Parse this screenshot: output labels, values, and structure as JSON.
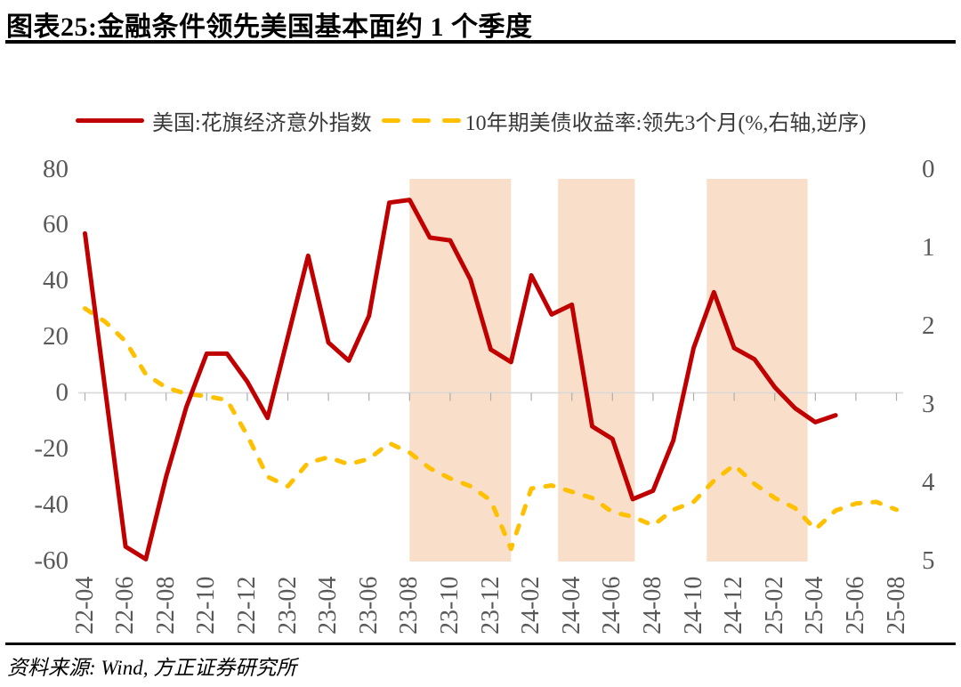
{
  "header": {
    "title": "图表25:金融条件领先美国基本面约 1 个季度"
  },
  "legend": {
    "items": [
      {
        "label": "美国:花旗经济意外指数",
        "color": "#C00000",
        "line_style": "solid"
      },
      {
        "label": "10年期美债收益率:领先3个月(%,右轴,逆序)",
        "color": "#FFC000",
        "line_style": "dashed"
      }
    ]
  },
  "footer": {
    "source": "资料来源: Wind, 方正证券研究所"
  },
  "colors": {
    "red_line": "#C00000",
    "yellow_line": "#FFC000",
    "band": "#F9DFC9",
    "gridline": "#D9D9D9",
    "tick": "#ADADAD",
    "axis_text": "#595959",
    "legend_text": "#3A3A3A",
    "title_text": "#000000"
  },
  "chart_data": {
    "type": "line",
    "x": [
      "22-04",
      "22-05",
      "22-06",
      "22-07",
      "22-08",
      "22-09",
      "22-10",
      "22-11",
      "22-12",
      "23-01",
      "23-02",
      "23-03",
      "23-04",
      "23-05",
      "23-06",
      "23-07",
      "23-08",
      "23-09",
      "23-10",
      "23-11",
      "23-12",
      "24-01",
      "24-02",
      "24-03",
      "24-04",
      "24-05",
      "24-06",
      "24-07",
      "24-08",
      "24-09",
      "24-10",
      "24-11",
      "24-12",
      "25-01",
      "25-02",
      "25-03",
      "25-04",
      "25-05",
      "25-06",
      "25-07",
      "25-08"
    ],
    "x_tick_labels": [
      "22-04",
      "22-06",
      "22-08",
      "22-10",
      "22-12",
      "23-02",
      "23-04",
      "23-06",
      "23-08",
      "23-10",
      "23-12",
      "24-02",
      "24-04",
      "24-06",
      "24-08",
      "24-10",
      "24-12",
      "25-02",
      "25-04",
      "25-06",
      "25-08"
    ],
    "left_axis": {
      "ticks": [
        80,
        60,
        40,
        20,
        0,
        -20,
        -40,
        -60
      ],
      "min": -60,
      "max": 80
    },
    "right_axis": {
      "ticks": [
        0,
        1,
        2,
        3,
        4,
        5
      ],
      "min": 0,
      "max": 5,
      "inverted": true
    },
    "grid": "zero-line-only",
    "series": [
      {
        "name": "美国:花旗经济意外指数",
        "axis": "left",
        "color": "#C00000",
        "dashed": false,
        "values": [
          57,
          1,
          -55,
          -59.5,
          -30,
          -5,
          14,
          14,
          4,
          -9,
          20,
          49,
          18,
          11.5,
          27.5,
          68,
          69,
          55.5,
          54.5,
          40.5,
          15.5,
          11,
          42,
          28,
          31.5,
          -12,
          -16.5,
          -38,
          -35,
          -17,
          16,
          36,
          16,
          12,
          2,
          -5.5,
          -10.5,
          -8,
          null,
          null,
          null
        ]
      },
      {
        "name": "10年期美债收益率:领先3个月(%,右轴,逆序)",
        "axis": "right",
        "color": "#FFC000",
        "dashed": true,
        "values": [
          1.78,
          1.95,
          2.2,
          2.62,
          2.79,
          2.87,
          2.9,
          2.95,
          3.4,
          3.93,
          4.05,
          3.75,
          3.68,
          3.77,
          3.7,
          3.5,
          3.62,
          3.82,
          3.95,
          4.05,
          4.23,
          4.85,
          4.08,
          4.04,
          4.12,
          4.2,
          4.38,
          4.44,
          4.55,
          4.35,
          4.25,
          3.98,
          3.78,
          4.02,
          4.2,
          4.33,
          4.6,
          4.36,
          4.27,
          4.25,
          4.35
        ]
      }
    ],
    "highlight_bands": [
      {
        "from": "23-08",
        "to": "24-01",
        "from_idx": 16,
        "to_idx": 21
      },
      {
        "from": "24-03",
        "to": "24-07",
        "from_idx": 23.32,
        "to_idx": 27.1
      },
      {
        "from": "24-11",
        "to": "25-04",
        "from_idx": 30.65,
        "to_idx": 35.62
      }
    ]
  }
}
